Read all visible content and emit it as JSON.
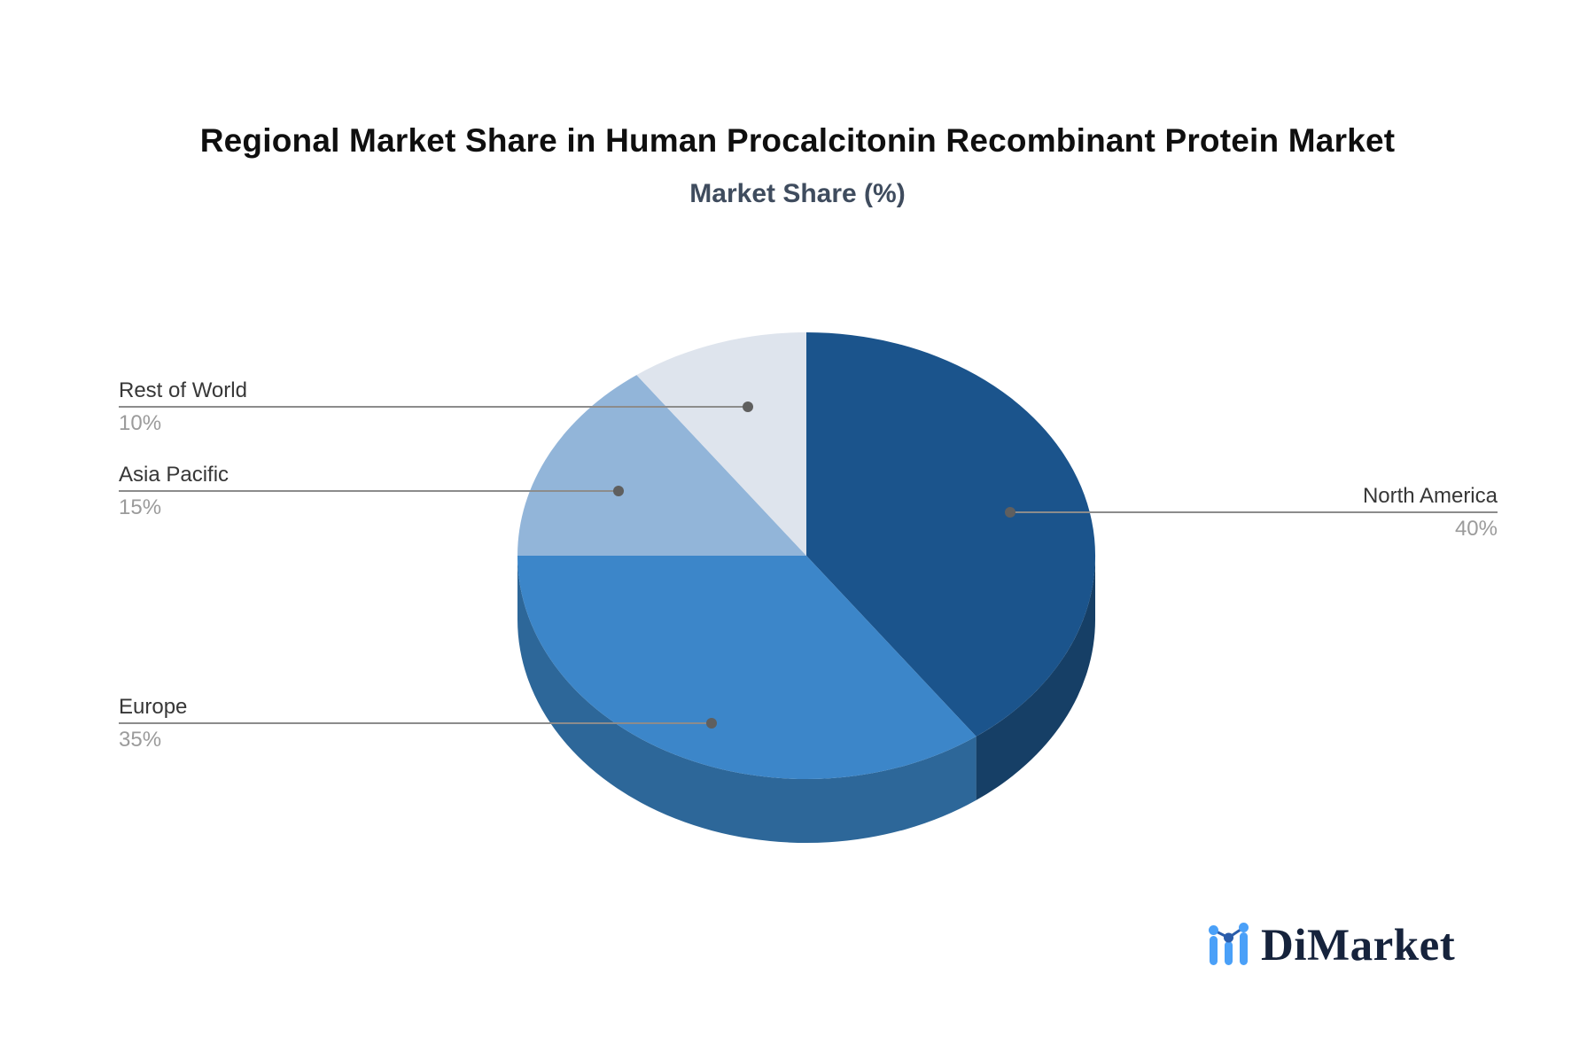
{
  "title": "Regional Market Share in Human Procalcitonin Recombinant Protein Market",
  "subtitle": "Market Share (%)",
  "logo": {
    "text": "DiMarket",
    "icon": "bar-line-chart-icon",
    "text_color": "#16233c",
    "icon_bar_color": "#4aa0f8",
    "icon_dot_color": "#2a5caa"
  },
  "callout_style": {
    "line_color": "#8c8c8c",
    "dot_color": "#5f5f5f",
    "label_color": "#373737",
    "percent_color": "#9b9b9b"
  },
  "chart_data": {
    "type": "pie",
    "title": "Regional Market Share in Human Procalcitonin Recombinant Protein Market",
    "subtitle": "Market Share (%)",
    "unit": "%",
    "effect": "3d",
    "start_angle": "12-oclock, clockwise",
    "legend_position": "callout-labels",
    "segments": [
      {
        "label": "North America",
        "value": 40,
        "display": "40%",
        "color": "#1b548c",
        "rim_color": "#163f66"
      },
      {
        "label": "Europe",
        "value": 35,
        "display": "35%",
        "color": "#3c86c9",
        "rim_color": "#2d6799"
      },
      {
        "label": "Asia Pacific",
        "value": 15,
        "display": "15%",
        "color": "#92b5d9",
        "rim_color": "#7ea6cc"
      },
      {
        "label": "Rest of World",
        "value": 10,
        "display": "10%",
        "color": "#dee4ed",
        "rim_color": "#c4cdd9"
      }
    ]
  }
}
